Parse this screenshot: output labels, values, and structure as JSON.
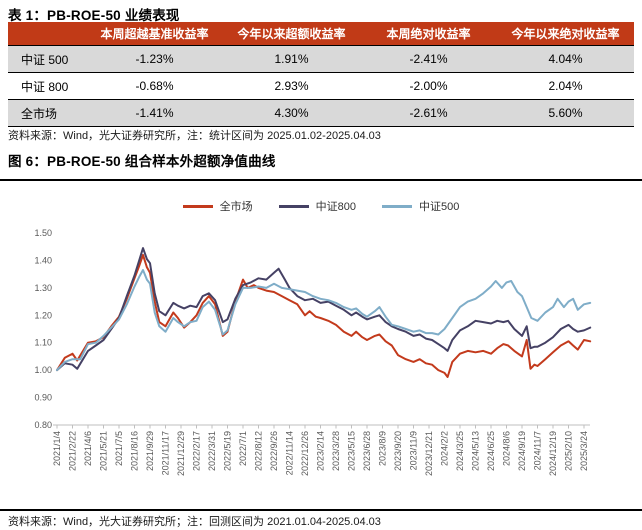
{
  "table_section": {
    "title": "表 1：PB-ROE-50 业绩表现",
    "source_note": "资料来源：Wind，光大证券研究所，注：统计区间为 2025.01.02-2025.04.03"
  },
  "figure_section": {
    "title": "图 6：PB-ROE-50 组合样本外超额净值曲线",
    "source_note": "资料来源：Wind，光大证券研究所；注：回测区间为 2021.01.04-2025.04.03"
  },
  "colors": {
    "table_header_bg": "#C13A17",
    "table_header_text": "#FFFFFF",
    "table_row_alt_bg": "#D9D9D9",
    "axis_label": "#595959",
    "axis_line": "#BFBFBF",
    "rule": "#000000"
  },
  "chart_data": [
    {
      "type": "table",
      "title": "PB-ROE-50 业绩表现",
      "columns": [
        "",
        "本周超越基准收益率",
        "今年以来超额收益率",
        "本周绝对收益率",
        "今年以来绝对收益率"
      ],
      "rows": [
        {
          "label": "中证 500",
          "values": [
            "-1.23%",
            "1.91%",
            "-2.41%",
            "4.04%"
          ]
        },
        {
          "label": "中证 800",
          "values": [
            "-0.68%",
            "2.93%",
            "-2.00%",
            "2.04%"
          ]
        },
        {
          "label": "全市场",
          "values": [
            "-1.41%",
            "4.30%",
            "-2.61%",
            "5.60%"
          ]
        }
      ]
    },
    {
      "type": "line",
      "title": "PB-ROE-50 组合样本外超额净值曲线",
      "legend_position": "top-center",
      "grid": false,
      "y_axis": {
        "min": 0.8,
        "max": 1.5,
        "ticks": [
          1.5,
          1.4,
          1.3,
          1.2,
          1.1,
          1.0,
          0.9,
          0.8
        ]
      },
      "x_axis": {
        "unit": "tick_index",
        "tick_labels": [
          "2021/1/4",
          "2021/2/22",
          "2021/4/6",
          "2021/5/21",
          "2021/7/5",
          "2021/8/16",
          "2021/9/29",
          "2021/11/17",
          "2021/12/29",
          "2022/2/17",
          "2022/3/31",
          "2022/5/19",
          "2022/7/1",
          "2022/8/12",
          "2022/9/26",
          "2022/11/14",
          "2022/12/26",
          "2023/2/14",
          "2023/3/28",
          "2023/5/15",
          "2023/6/28",
          "2023/8/9",
          "2023/9/20",
          "2023/11/9",
          "2023/12/21",
          "2024/2/2",
          "2024/3/25",
          "2024/5/13",
          "2024/6/25",
          "2024/8/6",
          "2024/9/19",
          "2024/11/7",
          "2024/12/19",
          "2025/2/10",
          "2025/3/24"
        ]
      },
      "series": [
        {
          "name": "全市场",
          "color": "#C33A1C",
          "x": [
            0,
            0.5,
            1,
            1.3,
            2,
            2.5,
            3,
            3.5,
            4,
            4.5,
            5,
            5.3,
            5.55,
            5.8,
            6,
            6.3,
            6.6,
            7,
            7.5,
            7.8,
            8.2,
            8.6,
            9,
            9.4,
            9.8,
            10.2,
            10.7,
            11,
            11.5,
            12,
            12.3,
            12.7,
            13,
            13.5,
            14,
            14.5,
            15,
            15.5,
            16,
            16.3,
            16.7,
            17,
            17.5,
            18,
            18.5,
            19,
            19.3,
            19.7,
            20,
            20.5,
            20.8,
            21.2,
            21.6,
            22,
            22.5,
            23,
            23.4,
            23.8,
            24.2,
            24.6,
            25,
            25.2,
            25.5,
            26,
            26.5,
            27,
            27.5,
            28,
            28.4,
            28.8,
            29.1,
            29.5,
            30,
            30.3,
            30.55,
            30.8,
            31,
            31.5,
            32,
            32.5,
            33,
            33.3,
            33.6,
            34,
            34.4
          ],
          "values": [
            1.0,
            1.045,
            1.06,
            1.035,
            1.1,
            1.105,
            1.12,
            1.16,
            1.195,
            1.26,
            1.335,
            1.38,
            1.42,
            1.375,
            1.355,
            1.25,
            1.175,
            1.16,
            1.21,
            1.19,
            1.155,
            1.175,
            1.2,
            1.245,
            1.27,
            1.24,
            1.125,
            1.14,
            1.25,
            1.33,
            1.3,
            1.31,
            1.3,
            1.29,
            1.285,
            1.27,
            1.255,
            1.24,
            1.2,
            1.215,
            1.195,
            1.19,
            1.18,
            1.165,
            1.14,
            1.125,
            1.14,
            1.12,
            1.11,
            1.125,
            1.13,
            1.105,
            1.09,
            1.055,
            1.04,
            1.03,
            1.04,
            1.025,
            1.02,
            1.0,
            0.99,
            0.975,
            1.03,
            1.06,
            1.07,
            1.065,
            1.07,
            1.06,
            1.08,
            1.095,
            1.09,
            1.07,
            1.05,
            1.11,
            1.005,
            1.02,
            1.015,
            1.04,
            1.065,
            1.09,
            1.105,
            1.09,
            1.075,
            1.11,
            1.105
          ]
        },
        {
          "name": "中证800",
          "color": "#454164",
          "x": [
            0,
            0.5,
            1,
            1.3,
            2,
            2.5,
            3,
            3.5,
            4,
            4.5,
            5,
            5.3,
            5.55,
            5.8,
            6,
            6.3,
            6.6,
            7,
            7.5,
            7.8,
            8.2,
            8.6,
            9,
            9.4,
            9.8,
            10.2,
            10.7,
            11,
            11.5,
            12,
            12.5,
            13,
            13.5,
            14,
            14.3,
            14.7,
            15,
            15.5,
            16,
            16.5,
            17,
            17.5,
            18,
            18.5,
            19,
            19.3,
            19.7,
            20,
            20.5,
            20.8,
            21.2,
            21.6,
            22,
            22.5,
            23,
            23.4,
            23.8,
            24.2,
            24.6,
            25,
            25.2,
            25.5,
            26,
            26.5,
            27,
            27.5,
            28,
            28.4,
            28.8,
            29.1,
            29.5,
            30,
            30.3,
            30.55,
            30.8,
            31,
            31.5,
            32,
            32.5,
            33,
            33.3,
            33.6,
            34,
            34.4
          ],
          "values": [
            1.0,
            1.025,
            1.02,
            1.005,
            1.07,
            1.09,
            1.11,
            1.15,
            1.19,
            1.27,
            1.345,
            1.4,
            1.445,
            1.405,
            1.39,
            1.28,
            1.215,
            1.2,
            1.245,
            1.235,
            1.225,
            1.235,
            1.23,
            1.27,
            1.28,
            1.255,
            1.175,
            1.185,
            1.26,
            1.31,
            1.32,
            1.335,
            1.33,
            1.355,
            1.37,
            1.33,
            1.3,
            1.27,
            1.255,
            1.26,
            1.245,
            1.25,
            1.235,
            1.22,
            1.2,
            1.21,
            1.195,
            1.185,
            1.195,
            1.2,
            1.175,
            1.16,
            1.15,
            1.14,
            1.125,
            1.13,
            1.115,
            1.11,
            1.095,
            1.08,
            1.07,
            1.11,
            1.145,
            1.16,
            1.18,
            1.175,
            1.17,
            1.18,
            1.175,
            1.18,
            1.15,
            1.125,
            1.16,
            1.08,
            1.085,
            1.085,
            1.1,
            1.12,
            1.15,
            1.165,
            1.15,
            1.14,
            1.145,
            1.155
          ]
        },
        {
          "name": "中证500",
          "color": "#7FADC8",
          "x": [
            0,
            0.5,
            1,
            1.5,
            2,
            2.5,
            3,
            3.5,
            4,
            4.5,
            5,
            5.3,
            5.55,
            5.8,
            6,
            6.3,
            6.6,
            7,
            7.5,
            7.8,
            8.2,
            8.6,
            9,
            9.4,
            9.8,
            10.2,
            10.7,
            11,
            11.5,
            12,
            12.5,
            13,
            13.5,
            14,
            14.5,
            15,
            15.5,
            16,
            16.5,
            17,
            17.5,
            18,
            18.5,
            19,
            19.3,
            19.7,
            20,
            20.5,
            20.8,
            21.2,
            21.6,
            22,
            22.5,
            23,
            23.4,
            23.8,
            24.2,
            24.6,
            25,
            25.5,
            26,
            26.5,
            27,
            27.5,
            28,
            28.3,
            28.7,
            29,
            29.3,
            29.7,
            30,
            30.3,
            30.6,
            31,
            31.5,
            32,
            32.3,
            32.7,
            33,
            33.3,
            33.6,
            34,
            34.4
          ],
          "values": [
            1.0,
            1.03,
            1.04,
            1.04,
            1.095,
            1.1,
            1.125,
            1.155,
            1.185,
            1.24,
            1.305,
            1.34,
            1.365,
            1.33,
            1.315,
            1.21,
            1.16,
            1.14,
            1.19,
            1.175,
            1.16,
            1.175,
            1.18,
            1.23,
            1.25,
            1.22,
            1.13,
            1.145,
            1.24,
            1.3,
            1.3,
            1.305,
            1.3,
            1.315,
            1.3,
            1.295,
            1.29,
            1.285,
            1.27,
            1.26,
            1.255,
            1.245,
            1.23,
            1.22,
            1.225,
            1.205,
            1.195,
            1.215,
            1.23,
            1.195,
            1.165,
            1.16,
            1.15,
            1.14,
            1.145,
            1.135,
            1.135,
            1.13,
            1.15,
            1.19,
            1.23,
            1.25,
            1.26,
            1.28,
            1.305,
            1.325,
            1.3,
            1.32,
            1.325,
            1.285,
            1.27,
            1.23,
            1.19,
            1.18,
            1.21,
            1.23,
            1.26,
            1.23,
            1.25,
            1.26,
            1.22,
            1.24,
            1.245
          ]
        }
      ]
    }
  ]
}
